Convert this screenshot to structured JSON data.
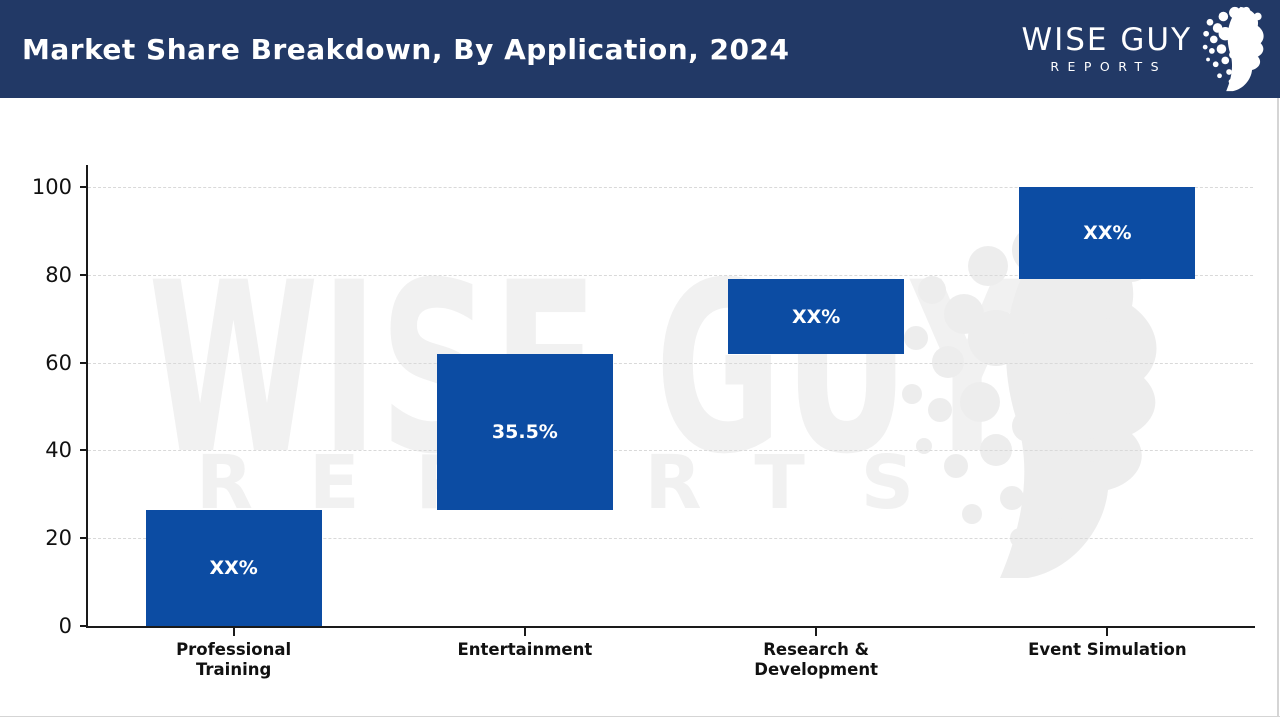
{
  "header": {
    "title": "Market Share Breakdown, By Application, 2024",
    "background_color": "#223966",
    "logo": {
      "wordmark": "WISE GUY",
      "subtext": "REPORTS"
    }
  },
  "watermark": {
    "wordmark": "WISE GUY",
    "subtext": "REPORTS"
  },
  "chart_data": {
    "type": "bar",
    "subtype": "floating-waterfall",
    "title": "Market Share Breakdown, By Application, 2024",
    "categories": [
      "Professional\nTraining",
      "Entertainment",
      "Research &\nDevelopment",
      "Event Simulation"
    ],
    "series": [
      {
        "name": "Market Share (%)",
        "segments": [
          {
            "category": "Professional Training",
            "start": 0,
            "end": 26.5,
            "label": "XX%"
          },
          {
            "category": "Entertainment",
            "start": 26.5,
            "end": 62,
            "label": "35.5%"
          },
          {
            "category": "Research & Development",
            "start": 62,
            "end": 79,
            "label": "XX%"
          },
          {
            "category": "Event Simulation",
            "start": 79,
            "end": 100,
            "label": "XX%"
          }
        ]
      }
    ],
    "xlabel": "",
    "ylabel": "",
    "yticks": [
      0,
      20,
      40,
      60,
      80,
      100
    ],
    "ylim": [
      0,
      105
    ],
    "grid": "dashed-horizontal",
    "grid_color": "#d9d9d9",
    "legend": "none",
    "bar_color": "#0c4ca3",
    "bar_label_color": "#ffffff"
  }
}
